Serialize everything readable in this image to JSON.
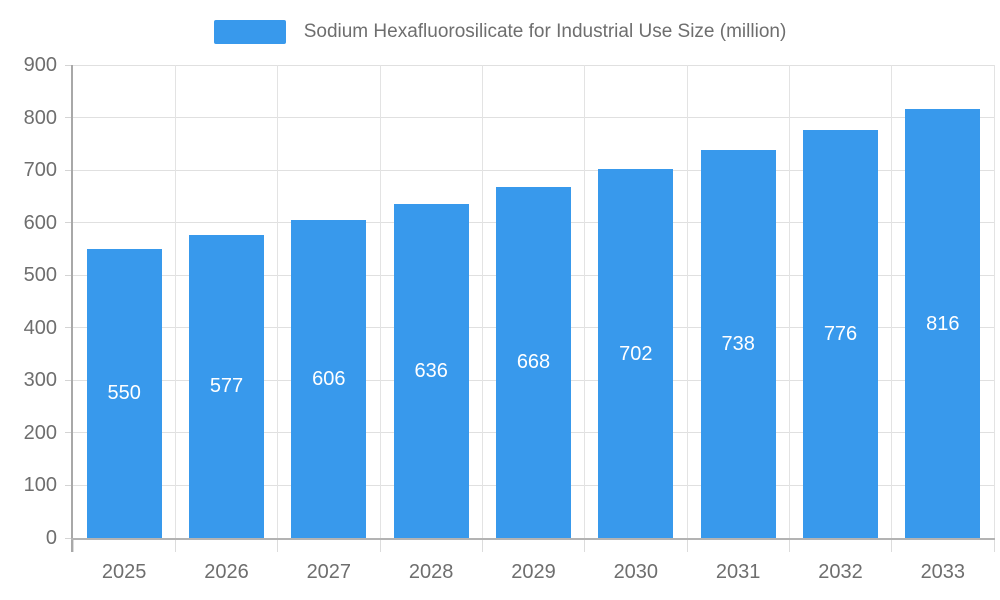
{
  "legend": {
    "items": [
      {
        "label": "Sodium Hexafluorosilicate for Industrial Use Size (million)",
        "color": "#3899ec"
      }
    ]
  },
  "chart_data": {
    "type": "bar",
    "title": "Sodium Hexafluorosilicate for Industrial Use Size (million)",
    "categories": [
      "2025",
      "2026",
      "2027",
      "2028",
      "2029",
      "2030",
      "2031",
      "2032",
      "2033"
    ],
    "series": [
      {
        "name": "Sodium Hexafluorosilicate for Industrial Use Size (million)",
        "values": [
          550,
          577,
          606,
          636,
          668,
          702,
          738,
          776,
          816
        ],
        "color": "#3899ec"
      }
    ],
    "xlabel": "",
    "ylabel": "",
    "ylim": [
      0,
      900
    ],
    "y_ticks": [
      0,
      100,
      200,
      300,
      400,
      500,
      600,
      700,
      800,
      900
    ],
    "grid": true,
    "legend_position": "top",
    "value_label_position": "inside-center",
    "value_label_color": "#ffffff",
    "colors": {
      "bar": "#3899ec",
      "axis_text": "#6e6e6e",
      "grid_line": "#e0e0e0",
      "y_axis_line": "#a8a8a8",
      "x_axis_line": "#b3b3b3",
      "background": "#ffffff"
    }
  }
}
